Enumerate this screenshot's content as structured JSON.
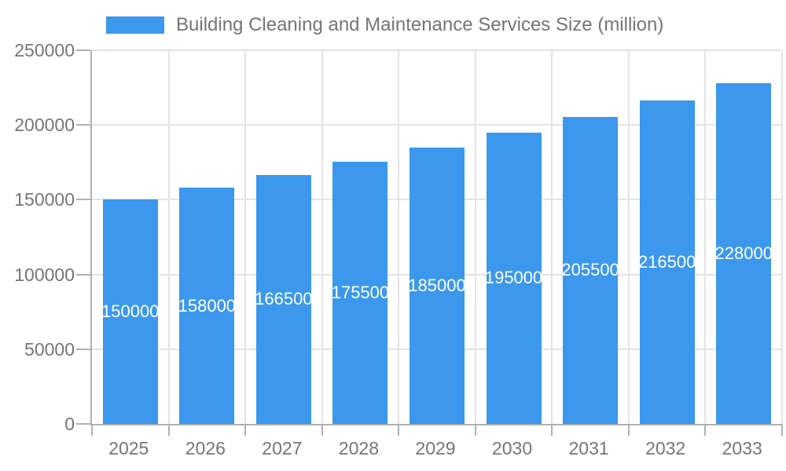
{
  "legend": {
    "label": "Building Cleaning and Maintenance Services Size (million)",
    "swatch_color": "#3b98ec"
  },
  "colors": {
    "bar": "#3b98ec",
    "grid": "#e3e3e3",
    "axis": "#b0b0b0",
    "axis_text": "#757575",
    "bar_label_text": "#ffffff",
    "background": "#ffffff"
  },
  "chart_data": {
    "type": "bar",
    "title": "Building Cleaning and Maintenance Services Size (million)",
    "categories": [
      "2025",
      "2026",
      "2027",
      "2028",
      "2029",
      "2030",
      "2031",
      "2032",
      "2033"
    ],
    "values": [
      150000,
      158000,
      166500,
      175500,
      185000,
      195000,
      205500,
      216500,
      228000
    ],
    "bar_value_labels": [
      "150000",
      "158000",
      "166500",
      "175500",
      "185000",
      "195000",
      "205500",
      "216500",
      "228000"
    ],
    "xlabel": "",
    "ylabel": "",
    "ylim": [
      0,
      250000
    ],
    "yticks": [
      0,
      50000,
      100000,
      150000,
      200000,
      250000
    ],
    "ytick_labels": [
      "0",
      "50000",
      "100000",
      "150000",
      "200000",
      "250000"
    ],
    "grid": true,
    "legend_position": "top",
    "bar_labels_inside": true
  }
}
